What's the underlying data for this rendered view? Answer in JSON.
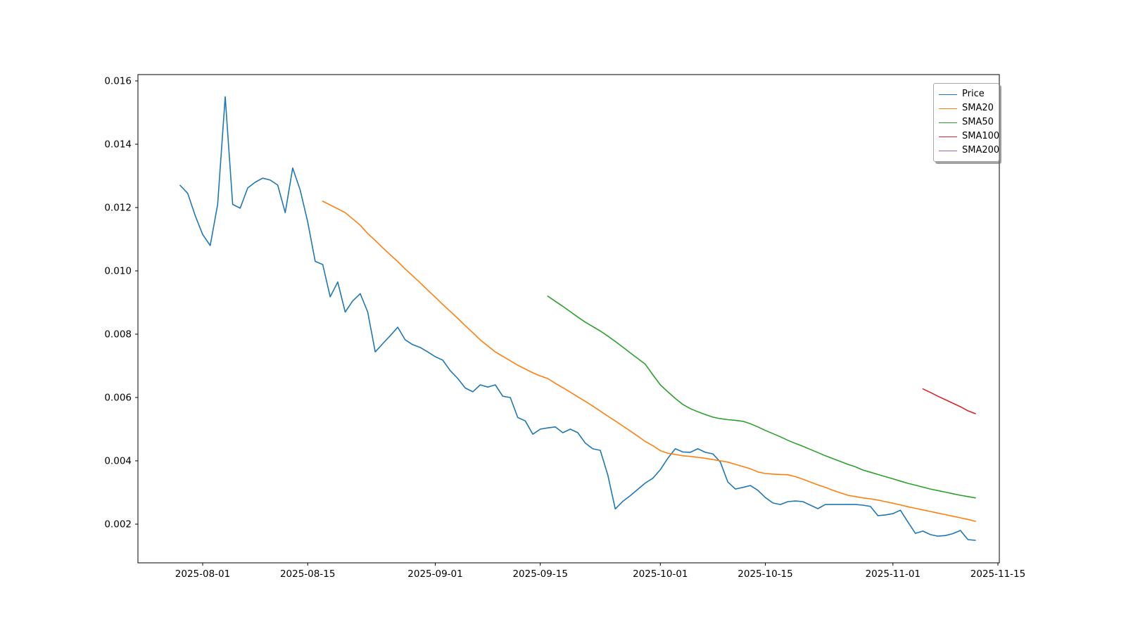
{
  "figure": {
    "background_color": "#ffffff"
  },
  "chart_data": {
    "type": "line",
    "title": "",
    "xlabel": "",
    "ylabel": "",
    "grid": false,
    "cadence": "daily",
    "legend": {
      "position": "upper right",
      "entries": [
        "Price",
        "SMA20",
        "SMA50",
        "SMA100",
        "SMA200"
      ]
    },
    "x_axis": {
      "type": "date",
      "tick_labels": [
        "2025-08-01",
        "2025-08-15",
        "2025-09-01",
        "2025-09-15",
        "2025-10-01",
        "2025-10-15",
        "2025-11-01",
        "2025-11-15"
      ],
      "range": [
        "2025-07-24",
        "2025-11-15"
      ]
    },
    "y_axis": {
      "tick_values": [
        0.002,
        0.004,
        0.006,
        0.008,
        0.01,
        0.012,
        0.014,
        0.016
      ],
      "tick_labels": [
        "0.002",
        "0.004",
        "0.006",
        "0.008",
        "0.010",
        "0.012",
        "0.014",
        "0.016"
      ],
      "range": [
        0.00078,
        0.01622
      ]
    },
    "series": [
      {
        "name": "Price",
        "color": "#1f77b4",
        "start_date": "2025-07-29",
        "end_date": "2025-11-12",
        "values": [
          0.0127,
          0.01245,
          0.01175,
          0.01115,
          0.0108,
          0.0121,
          0.0155,
          0.0121,
          0.01198,
          0.01262,
          0.0128,
          0.01293,
          0.01287,
          0.01271,
          0.01184,
          0.01325,
          0.01255,
          0.01155,
          0.0103,
          0.0102,
          0.00918,
          0.00965,
          0.0087,
          0.00905,
          0.00928,
          0.0087,
          0.00744,
          0.0077,
          0.00795,
          0.00822,
          0.00782,
          0.00767,
          0.00758,
          0.00744,
          0.00729,
          0.00718,
          0.00685,
          0.0066,
          0.0063,
          0.00618,
          0.0064,
          0.00633,
          0.0064,
          0.00604,
          0.006,
          0.00537,
          0.00526,
          0.00484,
          0.005,
          0.00504,
          0.00507,
          0.00489,
          0.005,
          0.00489,
          0.00456,
          0.00438,
          0.00433,
          0.00355,
          0.00248,
          0.00272,
          0.0029,
          0.0031,
          0.0033,
          0.00345,
          0.00372,
          0.00408,
          0.00438,
          0.00428,
          0.00427,
          0.00438,
          0.00427,
          0.00422,
          0.00396,
          0.00333,
          0.00311,
          0.00316,
          0.00322,
          0.00307,
          0.00284,
          0.00267,
          0.00262,
          0.00271,
          0.00273,
          0.00271,
          0.0026,
          0.00249,
          0.00262,
          0.00262,
          0.00262,
          0.00262,
          0.00262,
          0.0026,
          0.00256,
          0.00227,
          0.00229,
          0.00233,
          0.00244,
          0.00207,
          0.00171,
          0.00178,
          0.00167,
          0.00162,
          0.00164,
          0.0017,
          0.0018,
          0.00151,
          0.00149
        ]
      },
      {
        "name": "SMA20",
        "color": "#ff7f0e",
        "start_date": "2025-08-17",
        "end_date": "2025-11-12",
        "values": [
          0.0122,
          0.01208,
          0.01196,
          0.01184,
          0.01164,
          0.01144,
          0.01118,
          0.01096,
          0.01073,
          0.01051,
          0.01029,
          0.01006,
          0.00984,
          0.00962,
          0.00939,
          0.00917,
          0.00894,
          0.00872,
          0.0085,
          0.00827,
          0.00805,
          0.00782,
          0.00763,
          0.00744,
          0.0073,
          0.00716,
          0.00702,
          0.0069,
          0.00678,
          0.00668,
          0.0066,
          0.00645,
          0.00631,
          0.00617,
          0.00602,
          0.00588,
          0.00573,
          0.00557,
          0.00541,
          0.00526,
          0.0051,
          0.00494,
          0.00478,
          0.00461,
          0.00448,
          0.00432,
          0.00424,
          0.0042,
          0.00416,
          0.00414,
          0.00411,
          0.00408,
          0.00404,
          0.004,
          0.00396,
          0.00389,
          0.00382,
          0.00375,
          0.00365,
          0.0036,
          0.00358,
          0.00357,
          0.00356,
          0.0035,
          0.00342,
          0.00333,
          0.00324,
          0.00316,
          0.00307,
          0.00299,
          0.00291,
          0.00287,
          0.00283,
          0.0028,
          0.00276,
          0.00271,
          0.00266,
          0.00261,
          0.00255,
          0.0025,
          0.00245,
          0.0024,
          0.00235,
          0.0023,
          0.00225,
          0.0022,
          0.00215,
          0.00209
        ]
      },
      {
        "name": "SMA50",
        "color": "#2ca02c",
        "start_date": "2025-09-16",
        "end_date": "2025-11-12",
        "values": [
          0.0092,
          0.00904,
          0.00888,
          0.00871,
          0.00854,
          0.00838,
          0.00824,
          0.0081,
          0.00794,
          0.00777,
          0.00759,
          0.00741,
          0.00723,
          0.00705,
          0.00672,
          0.0064,
          0.00618,
          0.00597,
          0.00578,
          0.00565,
          0.00555,
          0.00546,
          0.00538,
          0.00533,
          0.0053,
          0.00528,
          0.00525,
          0.00517,
          0.00507,
          0.00496,
          0.00486,
          0.00476,
          0.00465,
          0.00455,
          0.00446,
          0.00436,
          0.00426,
          0.00416,
          0.00407,
          0.00398,
          0.00389,
          0.00381,
          0.00371,
          0.00364,
          0.00357,
          0.0035,
          0.00343,
          0.00336,
          0.00329,
          0.00323,
          0.00317,
          0.00311,
          0.00306,
          0.00301,
          0.00296,
          0.00291,
          0.00287,
          0.00283
        ]
      },
      {
        "name": "SMA100",
        "color": "#d62728",
        "start_date": "2025-11-05",
        "end_date": "2025-11-12",
        "values": [
          0.00627,
          0.00616,
          0.00604,
          0.00593,
          0.00582,
          0.00571,
          0.00558,
          0.00549
        ]
      },
      {
        "name": "SMA200",
        "color": "#9467bd",
        "start_date": null,
        "end_date": null,
        "values": []
      }
    ]
  }
}
